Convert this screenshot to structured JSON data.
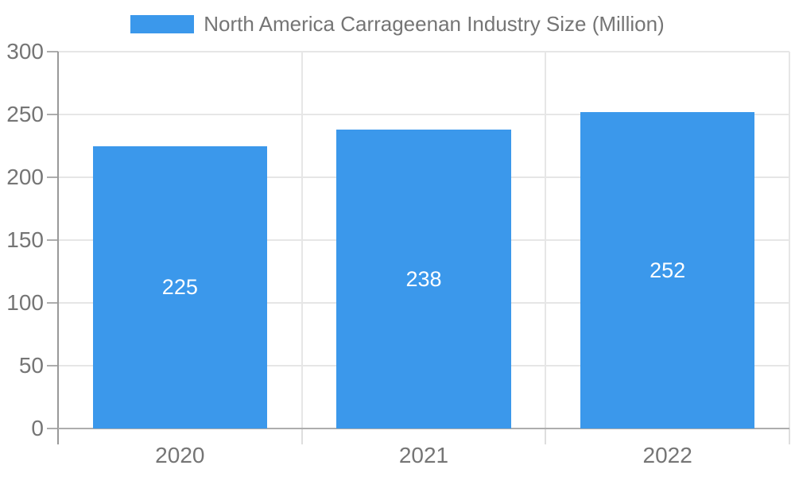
{
  "chart_data": {
    "type": "bar",
    "title": "North America Carrageenan Industry Size (Million)",
    "series": [
      {
        "name": "North America Carrageenan Industry Size (Million)",
        "values": [
          225,
          238,
          252
        ],
        "color": "#3B98EB"
      }
    ],
    "categories": [
      "2020",
      "2021",
      "2022"
    ],
    "xlabel": "",
    "ylabel": "",
    "ylim": [
      0,
      300
    ],
    "yticks": [
      0,
      50,
      100,
      150,
      200,
      250,
      300
    ],
    "grid": true,
    "legend_position": "top",
    "value_label_position": "inside-center",
    "value_label_color": "#FFFFFF"
  },
  "colors": {
    "background": "#FFFFFF",
    "bar": "#3B98EB",
    "grid": "#E6E6E6",
    "axis_y": "#999999",
    "axis_x": "#ADADAD",
    "tick": "#ADADAD",
    "x_tick": "#DEDEDE",
    "tick_label": "#757575",
    "legend_text": "#757575"
  }
}
